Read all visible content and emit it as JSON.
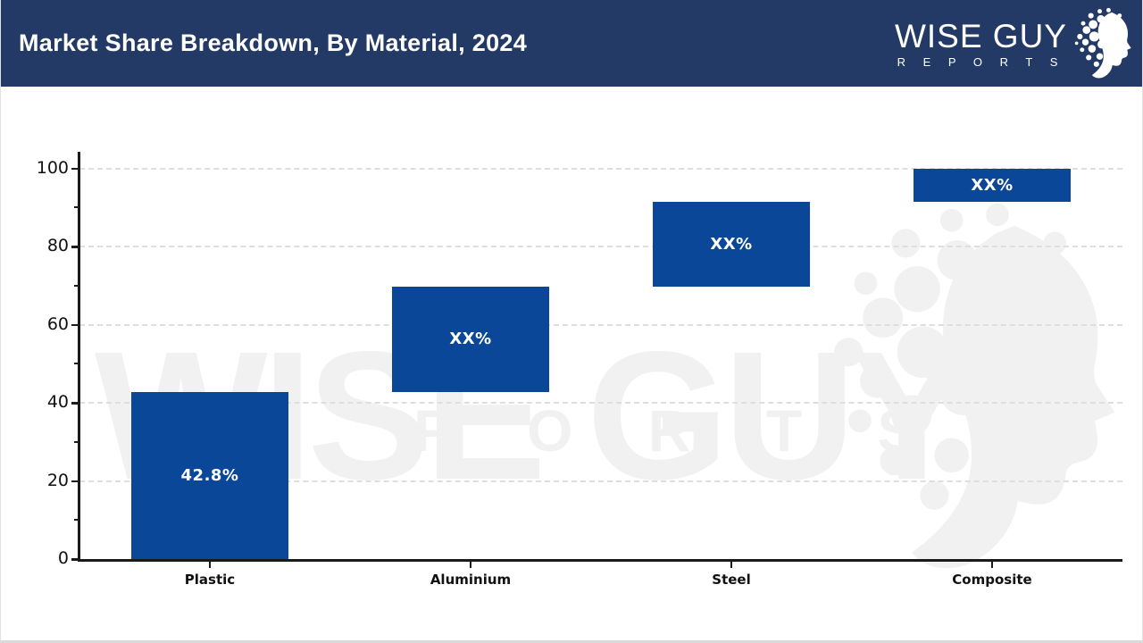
{
  "header": {
    "title": "Market Share Breakdown, By Material, 2024",
    "logo": {
      "line1": "WISE GUY",
      "line2": "R E P O R T S"
    }
  },
  "watermark": {
    "line1": "WISE GUY",
    "line2": "P O R T S"
  },
  "colors": {
    "header_bg": "#233a66",
    "bar": "#0b4798",
    "bar_label": "#ffffff",
    "grid": "#dedede",
    "axis": "#1a1a1a",
    "watermark": "#f1f1f2"
  },
  "chart_data": {
    "type": "bar",
    "subtype": "waterfall",
    "title": "Market Share Breakdown, By Material, 2024",
    "categories": [
      "Plastic",
      "Aluminium",
      "Steel",
      "Composite"
    ],
    "segments": [
      {
        "category": "Plastic",
        "start": 0,
        "end": 42.8,
        "label": "42.8%"
      },
      {
        "category": "Aluminium",
        "start": 42.8,
        "end": 69.8,
        "label": "XX%"
      },
      {
        "category": "Steel",
        "start": 69.8,
        "end": 91.5,
        "label": "XX%"
      },
      {
        "category": "Composite",
        "start": 91.5,
        "end": 100,
        "label": "XX%"
      }
    ],
    "xlabel": "",
    "ylabel": "",
    "ylim": [
      0,
      100
    ],
    "yticks": [
      0,
      20,
      40,
      60,
      80,
      100
    ],
    "minor_tick_step": 10,
    "grid": "horizontal dashed at major ticks",
    "legend": "none",
    "bar_label_note": "value shown inside each bar; only Plastic has numeric value, others masked as XX%"
  }
}
